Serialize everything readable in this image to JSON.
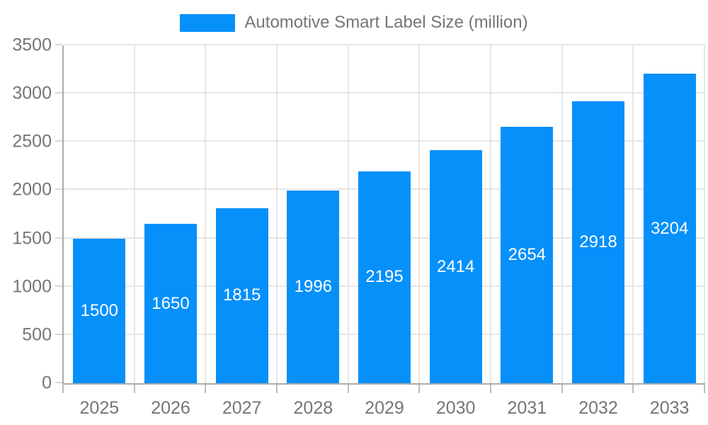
{
  "legend": {
    "label": "Automotive Smart Label Size (million)"
  },
  "colors": {
    "background": "#ffffff",
    "bar": "#0690fa",
    "bar_label": "#ffffff",
    "text": "#757575",
    "grid": "#e6e6e6",
    "axis": "#ababab",
    "y_tick": "#d6d6d6",
    "x_tick": "#bdbdbd"
  },
  "chart_data": {
    "type": "bar",
    "title": "Automotive Smart Label Size (million)",
    "categories": [
      "2025",
      "2026",
      "2027",
      "2028",
      "2029",
      "2030",
      "2031",
      "2032",
      "2033"
    ],
    "values": [
      1500,
      1650,
      1815,
      1996,
      2195,
      2414,
      2654,
      2918,
      3204
    ],
    "xlabel": "",
    "ylabel": "",
    "ylim": [
      0,
      3500
    ],
    "ytick_step": 500,
    "grid": "on",
    "legend_position": "top-center",
    "bar_labels": "inside-center"
  }
}
